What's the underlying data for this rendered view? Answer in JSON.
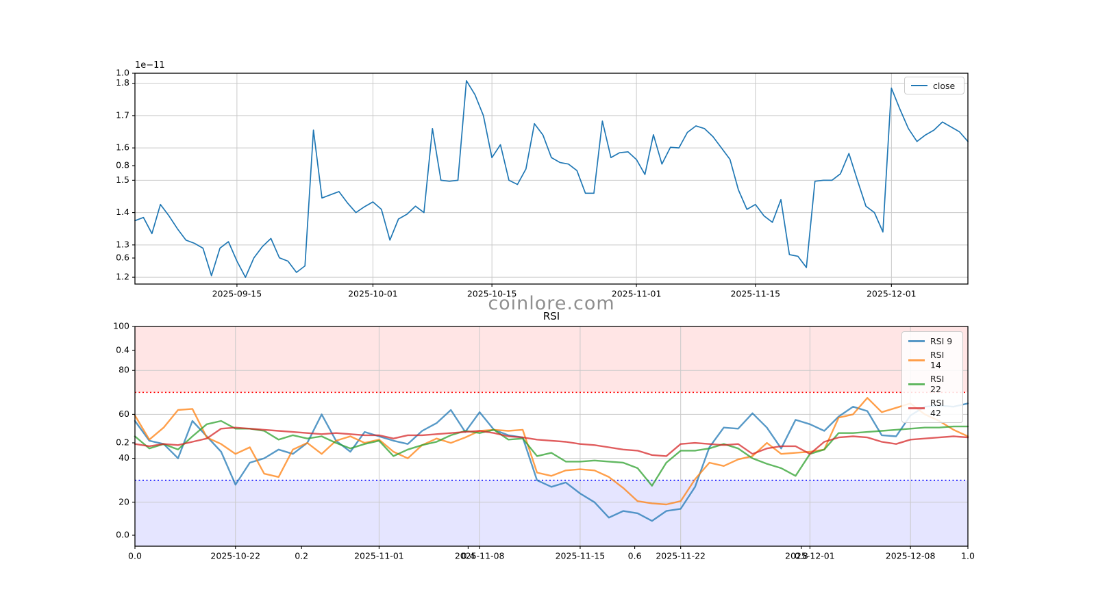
{
  "watermark": "coinlore.com",
  "colors": {
    "grid": "#c9c9c9",
    "spine": "#000000",
    "text": "#000000",
    "watermark": "#8f8f8f",
    "overbought_band": "#ffe5e5",
    "oversold_band": "#e5e5ff",
    "overbought_line": "#ff0000",
    "oversold_line": "#0000ff"
  },
  "overlay_axis": {
    "xticks": [
      "0.0",
      "0.2",
      "0.4",
      "0.6",
      "0.8",
      "1.0"
    ],
    "yticks": [
      "1.0",
      "0.8",
      "0.6",
      "0.4",
      "0.2",
      "0.0"
    ]
  },
  "chart_data": [
    {
      "type": "line",
      "name": "price",
      "y_unit_offset_label": "1e−11",
      "legend_position": "upper right",
      "x_start": "2025-09-03",
      "x_end": "2025-12-10",
      "x_freq": "daily",
      "xticks": [
        "2025-09-15",
        "2025-10-01",
        "2025-10-15",
        "2025-11-01",
        "2025-11-15",
        "2025-12-01"
      ],
      "yticks": [
        "1.8",
        "1.7",
        "1.6",
        "1.5",
        "1.4",
        "1.3",
        "1.2"
      ],
      "ylim": [
        1.179,
        1.831
      ],
      "grid": true,
      "series": [
        {
          "name": "close",
          "color": "#1f77b4",
          "values": [
            1.375,
            1.385,
            1.335,
            1.425,
            1.39,
            1.35,
            1.315,
            1.305,
            1.29,
            1.205,
            1.29,
            1.31,
            1.25,
            1.2,
            1.26,
            1.295,
            1.32,
            1.26,
            1.25,
            1.215,
            1.235,
            1.655,
            1.445,
            1.455,
            1.465,
            1.43,
            1.4,
            1.418,
            1.433,
            1.41,
            1.315,
            1.38,
            1.395,
            1.42,
            1.4,
            1.66,
            1.5,
            1.497,
            1.5,
            1.808,
            1.765,
            1.7,
            1.57,
            1.61,
            1.5,
            1.487,
            1.535,
            1.675,
            1.64,
            1.57,
            1.555,
            1.55,
            1.53,
            1.46,
            1.46,
            1.683,
            1.57,
            1.585,
            1.588,
            1.564,
            1.518,
            1.641,
            1.55,
            1.602,
            1.6,
            1.648,
            1.668,
            1.66,
            1.635,
            1.6,
            1.565,
            1.47,
            1.41,
            1.425,
            1.39,
            1.37,
            1.44,
            1.27,
            1.265,
            1.23,
            1.497,
            1.5,
            1.5,
            1.52,
            1.583,
            1.5,
            1.42,
            1.4,
            1.34,
            1.785,
            1.72,
            1.66,
            1.62,
            1.64,
            1.655,
            1.68,
            1.665,
            1.65,
            1.62
          ]
        }
      ]
    },
    {
      "type": "line",
      "name": "rsi",
      "title": "RSI",
      "legend_position": "upper right",
      "x_start": "2025-10-15",
      "x_end": "2025-12-12",
      "x_freq": "daily",
      "xticks": [
        "2025-10-22",
        "2025-11-01",
        "2025-11-08",
        "2025-11-15",
        "2025-11-22",
        "2025-12-01",
        "2025-12-08"
      ],
      "yticks": [
        "100",
        "80",
        "60",
        "40",
        "20"
      ],
      "ylim": [
        0,
        100
      ],
      "grid": true,
      "hlines": [
        {
          "value": 70,
          "color": "#ff0000",
          "style": "dotted",
          "name": "overbought"
        },
        {
          "value": 30,
          "color": "#0000ff",
          "style": "dotted",
          "name": "oversold"
        }
      ],
      "bands": [
        {
          "from": 70,
          "to": 100,
          "color": "#ffe5e5",
          "name": "overbought-zone"
        },
        {
          "from": 0,
          "to": 30,
          "color": "#e5e5ff",
          "name": "oversold-zone"
        }
      ],
      "series": [
        {
          "name": "RSI 9",
          "color": "#1f77b4",
          "values": [
            57,
            48,
            46.5,
            40,
            57,
            50,
            43,
            28,
            38,
            40,
            44,
            42,
            47,
            60,
            48,
            43,
            52,
            50,
            48,
            46.5,
            52.5,
            56,
            62,
            52,
            61,
            53,
            50.5,
            49.5,
            30,
            27,
            29,
            24,
            20,
            13,
            16,
            15,
            11.5,
            16,
            17,
            27,
            45,
            54,
            53.5,
            60.5,
            54,
            44.5,
            57.5,
            55.5,
            52.5,
            59,
            63.5,
            61.5,
            50.5,
            50,
            59.5,
            63.5,
            64,
            63.5,
            65
          ]
        },
        {
          "name": "RSI 14",
          "color": "#ff7f0e",
          "values": [
            59.5,
            48.5,
            54,
            62,
            62.5,
            49.5,
            46.5,
            42,
            45,
            33,
            31.5,
            44,
            47,
            42,
            48,
            50,
            47,
            48.5,
            43,
            40,
            46,
            49,
            47,
            49.5,
            52.5,
            53,
            52.5,
            53,
            33.5,
            32,
            34.5,
            35,
            34.5,
            31.5,
            26.5,
            20.5,
            19.5,
            19,
            20.5,
            30.5,
            38,
            36.5,
            39.5,
            41,
            47,
            42,
            42.5,
            43,
            44,
            58.5,
            60,
            67.5,
            61,
            63,
            65,
            60,
            57,
            53,
            50
          ]
        },
        {
          "name": "RSI 22",
          "color": "#2ca02c",
          "values": [
            50,
            44.5,
            46.5,
            44,
            50,
            55.5,
            57,
            53.5,
            53.5,
            52.5,
            48.5,
            50.5,
            49,
            50,
            47,
            44.5,
            46.5,
            48,
            41,
            44,
            46,
            47.5,
            50.5,
            52.5,
            51.5,
            53,
            48.5,
            49,
            41,
            42.5,
            38.5,
            38.5,
            39,
            38.5,
            38,
            35.5,
            27.5,
            38,
            43.5,
            43.5,
            44.5,
            46.5,
            44.5,
            40,
            37.5,
            35.5,
            32,
            42,
            44,
            51.5,
            51.5,
            52,
            52.5,
            53,
            53.5,
            54,
            54,
            54.5,
            54.5
          ]
        },
        {
          "name": "RSI 42",
          "color": "#d62728",
          "values": [
            46.5,
            45.5,
            46.5,
            46,
            47.5,
            49,
            53.5,
            54,
            53.5,
            53,
            52.5,
            52,
            51.5,
            51,
            51.5,
            51,
            50.5,
            50.5,
            49,
            50.5,
            50.5,
            51,
            51.5,
            52,
            52.5,
            51.5,
            50,
            49.5,
            48.5,
            48,
            47.5,
            46.5,
            46,
            45,
            44,
            43.5,
            41.5,
            41,
            46.5,
            47,
            46.5,
            46,
            46.5,
            42,
            44.5,
            45.5,
            45.5,
            42,
            47.5,
            49.5,
            50,
            49.5,
            47.5,
            46.5,
            48.5,
            49,
            49.5,
            50,
            49.5
          ]
        }
      ]
    }
  ]
}
